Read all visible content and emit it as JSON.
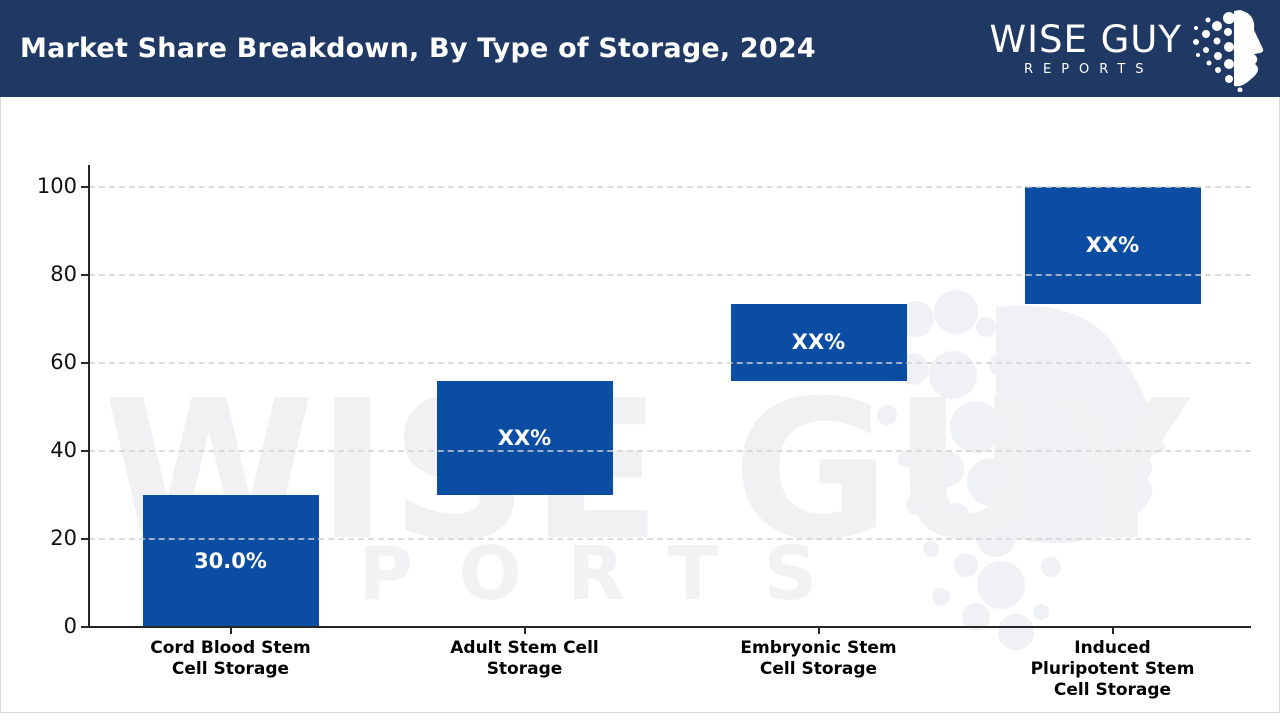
{
  "header": {
    "title": "Market Share Breakdown, By Type of Storage, 2024",
    "bg_color": "#203864",
    "logo": {
      "line1": "WISE GUY",
      "line2": "REPORTS"
    }
  },
  "watermark": {
    "line1": "WISE GUY",
    "line2": "REPORTS"
  },
  "chart_data": {
    "type": "bar",
    "subtype": "stacked-waterfall",
    "title": "Market Share Breakdown, By Type of Storage, 2024",
    "categories": [
      [
        "Cord Blood Stem",
        "Cell Storage"
      ],
      [
        "Adult Stem Cell",
        "Storage"
      ],
      [
        "Embryonic Stem",
        "Cell Storage"
      ],
      [
        "Induced",
        "Pluripotent Stem",
        "Cell Storage"
      ]
    ],
    "segments": [
      {
        "start": 0,
        "end": 30,
        "label": "30.0%"
      },
      {
        "start": 30,
        "end": 56,
        "label": "XX%"
      },
      {
        "start": 56,
        "end": 73.5,
        "label": "XX%"
      },
      {
        "start": 73.5,
        "end": 100,
        "label": "XX%"
      }
    ],
    "yticks": [
      0,
      20,
      40,
      60,
      80,
      100
    ],
    "ylim": [
      0,
      105
    ],
    "xlabel": "",
    "ylabel": "",
    "grid": "horizontal-dashed",
    "legend": "none",
    "bar_color": "#0b4da2",
    "bar_label_color": "#ffffff"
  }
}
